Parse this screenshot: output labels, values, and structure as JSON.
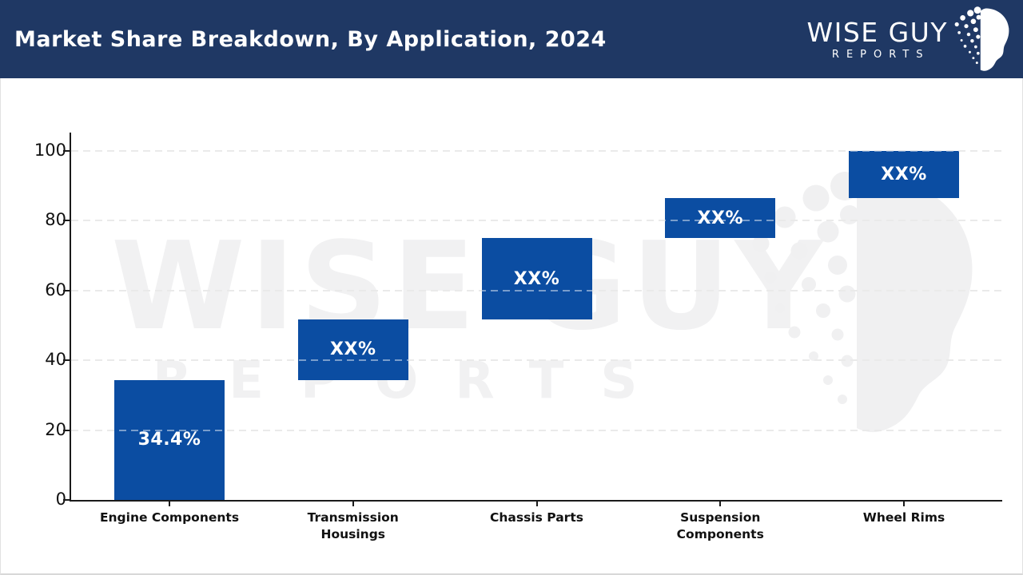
{
  "header": {
    "title": "Market Share Breakdown, By Application, 2024",
    "logo": {
      "line1": "WISE GUY",
      "line2": "REPORTS"
    }
  },
  "watermark": {
    "line1": "WISE GUY",
    "line2": "REPORTS"
  },
  "chart_data": {
    "type": "bar",
    "subtype": "waterfall",
    "title": "Market Share Breakdown, By Application, 2024",
    "categories": [
      "Engine Components",
      "Transmission\nHousings",
      "Chassis Parts",
      "Suspension\nComponents",
      "Wheel Rims"
    ],
    "segments": [
      {
        "category": "Engine Components",
        "start": 0,
        "end": 34.4,
        "size": 34.4,
        "label": "34.4%"
      },
      {
        "category": "Transmission Housings",
        "start": 34.4,
        "end": 51.6,
        "size": 17.2,
        "label": "XX%"
      },
      {
        "category": "Chassis Parts",
        "start": 51.6,
        "end": 74.9,
        "size": 23.3,
        "label": "XX%"
      },
      {
        "category": "Suspension Components",
        "start": 74.9,
        "end": 86.3,
        "size": 11.4,
        "label": "XX%"
      },
      {
        "category": "Wheel Rims",
        "start": 86.3,
        "end": 100,
        "size": 13.7,
        "label": "XX%"
      }
    ],
    "xlabel": "",
    "ylabel": "",
    "ylim": [
      0,
      100
    ],
    "yticks": [
      0,
      20,
      40,
      60,
      80,
      100
    ],
    "grid": "horizontal-dashed",
    "legend": "none",
    "bar_color": "#0b4da2",
    "bar_label_color": "#ffffff"
  },
  "colors": {
    "header_bg": "#1f3864",
    "bar": "#0b4da2",
    "gridline": "#d9d9d9",
    "axis": "#1a1a1a",
    "watermark": "#f1f1f2",
    "title_text": "#ffffff"
  }
}
